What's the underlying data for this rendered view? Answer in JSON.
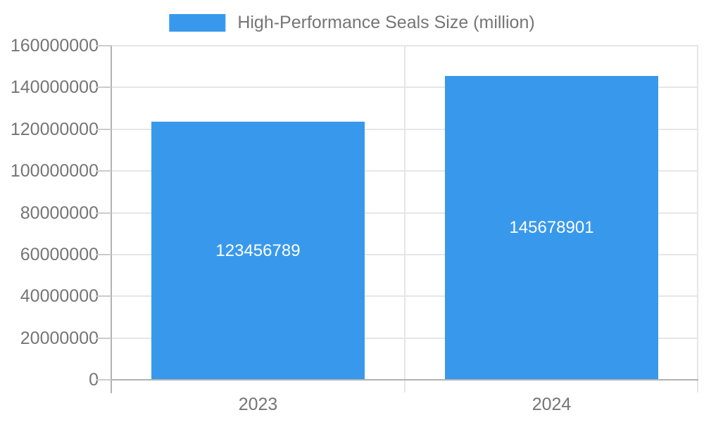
{
  "legend": {
    "label": "High-Performance Seals Size (million)"
  },
  "colors": {
    "bar": "#3899ec",
    "bar_label_text": "#ffffff",
    "axis_text": "#757575",
    "axis_line": "#b2b2b2",
    "gridline": "#e6e6e6",
    "tick": "#cccccc",
    "background": "#ffffff"
  },
  "chart_data": {
    "type": "bar",
    "categories": [
      "2023",
      "2024"
    ],
    "values": [
      123456789,
      145678901
    ],
    "bar_value_labels": [
      "123456789",
      "145678901"
    ],
    "title": "",
    "legend_label": "High-Performance Seals Size (million)",
    "legend_position": "top",
    "xlabel": "",
    "ylabel": "",
    "ylim": [
      0,
      160000000
    ],
    "ytick_step": 20000000,
    "ytick_labels": [
      "0",
      "20000000",
      "40000000",
      "60000000",
      "80000000",
      "100000000",
      "120000000",
      "140000000",
      "160000000"
    ],
    "grid": true,
    "bar_width_fraction": 0.725
  }
}
